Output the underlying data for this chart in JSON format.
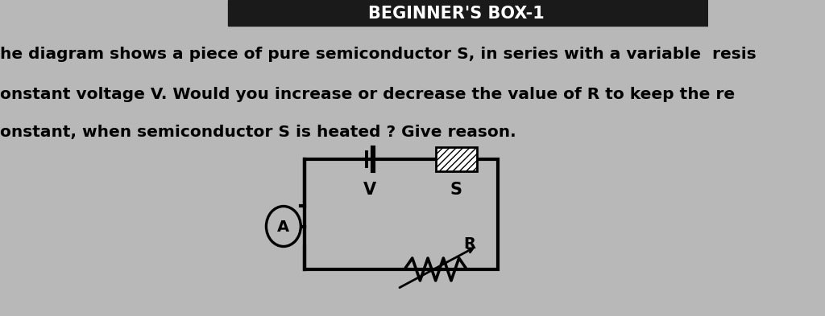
{
  "title": "BEGINNER'S BOX-1",
  "title_bg": "#1a1a1a",
  "title_color": "#ffffff",
  "bg_color": "#b8b8b8",
  "text_lines": [
    "he diagram shows a piece of pure semiconductor S, in series with a variable  resis",
    "onstant voltage V. Would you increase or decrease the value of R to keep the re",
    "onstant, when semiconductor S is heated ? Give reason."
  ],
  "text_color": "#000000",
  "text_fontsize": 14.5,
  "title_fontsize": 15,
  "circuit_color": "#000000",
  "lw": 2.0
}
